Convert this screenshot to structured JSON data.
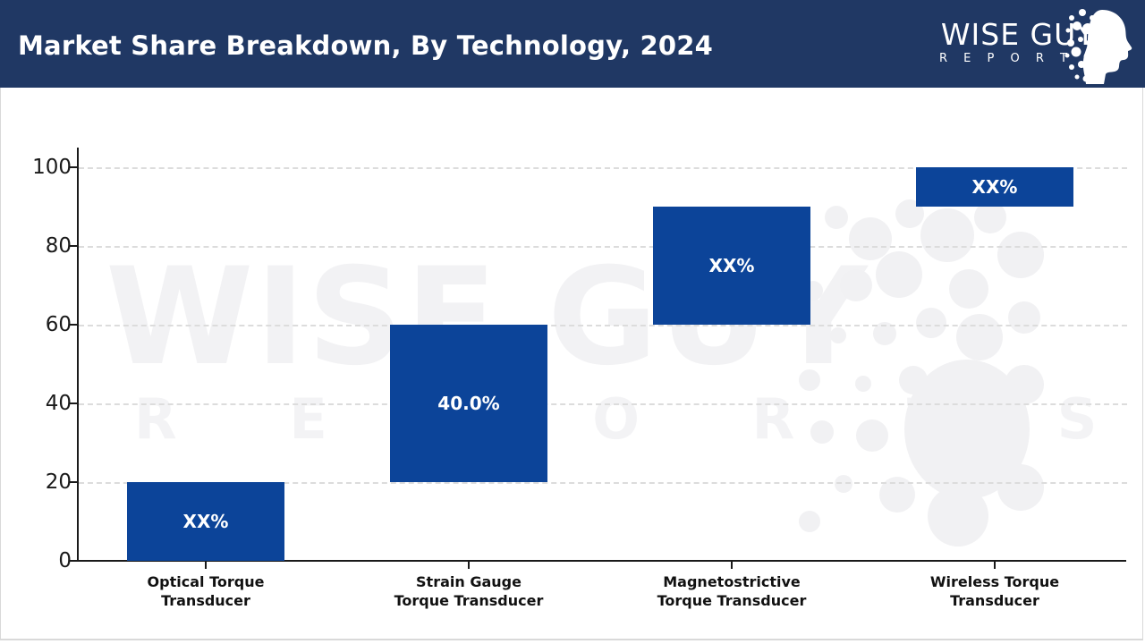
{
  "header": {
    "title": "Market Share Breakdown, By Technology, 2024",
    "brand_line1": "WISE GUY",
    "brand_line2": "R E P O R T S",
    "bg_color": "#203864"
  },
  "watermark": {
    "line1": "WISE GUY",
    "line2": "R E P O R T S"
  },
  "chart_data": {
    "type": "bar",
    "subtype": "waterfall",
    "title": "Market Share Breakdown, By Technology, 2024",
    "categories": [
      [
        "Optical Torque",
        "Transducer"
      ],
      [
        "Strain Gauge",
        "Torque Transducer"
      ],
      [
        "Magnetostrictive",
        "Torque Transducer"
      ],
      [
        "Wireless Torque",
        "Transducer"
      ]
    ],
    "bases": [
      0,
      20,
      60,
      90
    ],
    "values": [
      20,
      40,
      30,
      10
    ],
    "bar_labels": [
      "XX%",
      "40.0%",
      "XX%",
      "XX%"
    ],
    "yticks": [
      0,
      20,
      40,
      60,
      80,
      100
    ],
    "ylim": [
      0,
      105
    ],
    "xlabel": "",
    "ylabel": "",
    "grid": "horizontal-dashed",
    "legend": "none",
    "bar_color": "#0C4499",
    "bar_label_color": "#FFFFFF",
    "gridline_color": "#DCDCDC",
    "axis_color": "#1A1A1A"
  }
}
